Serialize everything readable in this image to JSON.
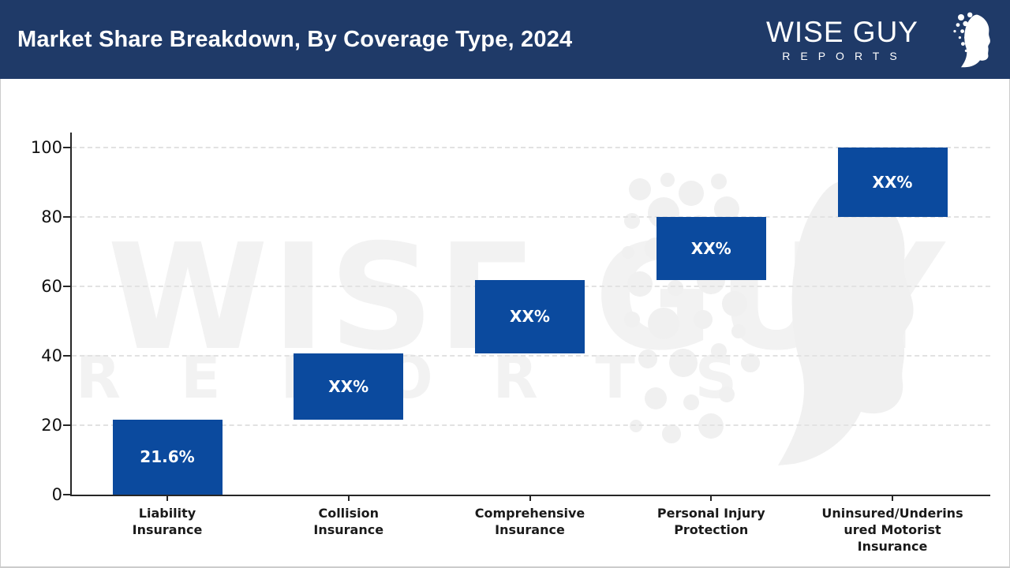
{
  "header": {
    "title": "Market Share Breakdown, By Coverage Type, 2024",
    "logo": {
      "line1": "WISE GUY",
      "line2": "REPORTS"
    }
  },
  "watermark": {
    "line1": "WISE GUY",
    "line2": "REPORTS"
  },
  "colors": {
    "header_bg": "#1f3a68",
    "bar": "#0b4a9e",
    "axis": "#262626",
    "grid": "#e2e2e2",
    "bar_label": "#ffffff",
    "tick_label": "#111111"
  },
  "chart_data": {
    "type": "bar",
    "subtype": "stacked-waterfall",
    "title": "Market Share Breakdown, By Coverage Type, 2024",
    "categories": [
      "Liability Insurance",
      "Collision Insurance",
      "Comprehensive Insurance",
      "Personal Injury Protection",
      "Uninsured/Underinsured Motorist Insurance"
    ],
    "segments": [
      {
        "category": "Liability Insurance",
        "label_lines": [
          "Liability",
          "Insurance"
        ],
        "start": 0,
        "end": 21.6,
        "value_label": "21.6%"
      },
      {
        "category": "Collision Insurance",
        "label_lines": [
          "Collision",
          "Insurance"
        ],
        "start": 21.6,
        "end": 40.7,
        "value_label": "XX%"
      },
      {
        "category": "Comprehensive Insurance",
        "label_lines": [
          "Comprehensive",
          "Insurance"
        ],
        "start": 40.7,
        "end": 61.8,
        "value_label": "XX%"
      },
      {
        "category": "Personal Injury Protection",
        "label_lines": [
          "Personal Injury",
          "Protection"
        ],
        "start": 61.8,
        "end": 80,
        "value_label": "XX%"
      },
      {
        "category": "Uninsured/Underinsured Motorist Insurance",
        "label_lines": [
          "Uninsured/Underins",
          "ured Motorist",
          "Insurance"
        ],
        "start": 80,
        "end": 100,
        "value_label": "XX%"
      }
    ],
    "ylim": [
      0,
      100
    ],
    "yticks": [
      0,
      20,
      40,
      60,
      80,
      100
    ],
    "xlabel": "",
    "ylabel": "",
    "grid": "horizontal-dashed",
    "legend": "none"
  }
}
